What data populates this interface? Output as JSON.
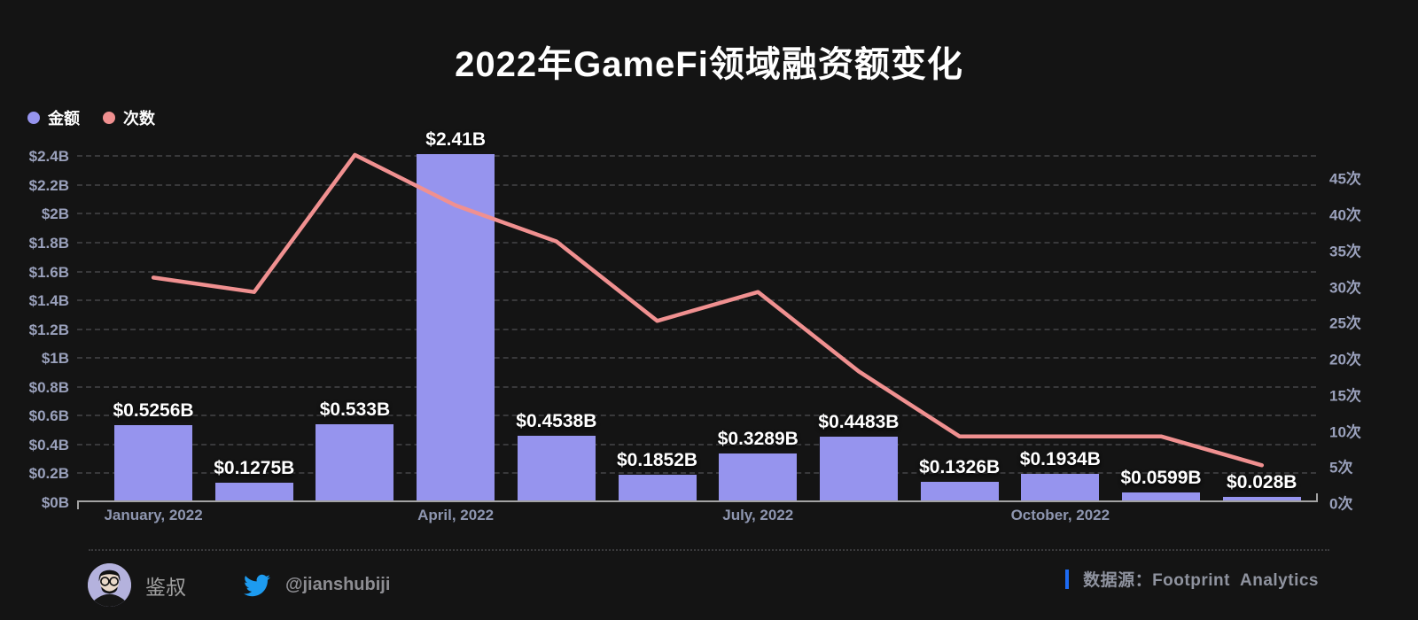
{
  "title": "2022年GameFi领域融资额变化",
  "legend": {
    "items": [
      {
        "key": "amount",
        "label": "金额",
        "color": "#9694ee"
      },
      {
        "key": "count",
        "label": "次数",
        "color": "#f09090"
      }
    ]
  },
  "chart_data": {
    "type": "combo-bar-line",
    "title": "2022年GameFi领域融资额变化",
    "n_points": 12,
    "x_tick_labels": [
      {
        "index": 0,
        "label": "January, 2022"
      },
      {
        "index": 3,
        "label": "April, 2022"
      },
      {
        "index": 6,
        "label": "July, 2022"
      },
      {
        "index": 9,
        "label": "October, 2022"
      }
    ],
    "series": [
      {
        "name": "金额",
        "type": "bar",
        "axis": "left",
        "color": "#9694ee",
        "values": [
          0.5256,
          0.1275,
          0.533,
          2.41,
          0.4538,
          0.1852,
          0.3289,
          0.4483,
          0.1326,
          0.1934,
          0.0599,
          0.028
        ],
        "labels": [
          "$0.5256B",
          "$0.1275B",
          "$0.533B",
          "$2.41B",
          "$0.4538B",
          "$0.1852B",
          "$0.3289B",
          "$0.4483B",
          "$0.1326B",
          "$0.1934B",
          "$0.0599B",
          "$0.028B"
        ]
      },
      {
        "name": "次数",
        "type": "line",
        "axis": "right",
        "color": "#f09090",
        "values": [
          31,
          29,
          48,
          41,
          36,
          25,
          29,
          18,
          9,
          9,
          9,
          5
        ]
      }
    ],
    "y_left": {
      "min": 0,
      "max": 2.4,
      "ticks": [
        "$0B",
        "$0.2B",
        "$0.4B",
        "$0.6B",
        "$0.8B",
        "$1B",
        "$1.2B",
        "$1.4B",
        "$1.6B",
        "$1.8B",
        "$2B",
        "$2.2B",
        "$2.4B"
      ]
    },
    "y_right": {
      "min": 0,
      "max": 45,
      "ticks": [
        "0次",
        "5次",
        "10次",
        "15次",
        "20次",
        "25次",
        "30次",
        "35次",
        "40次",
        "45次"
      ]
    },
    "grid": "dashed-horizontal",
    "legend_position": "top-left"
  },
  "footer": {
    "author": "鉴叔",
    "twitter_handle": "@jianshubiji",
    "source": "数据源：Footprint Analytics"
  }
}
